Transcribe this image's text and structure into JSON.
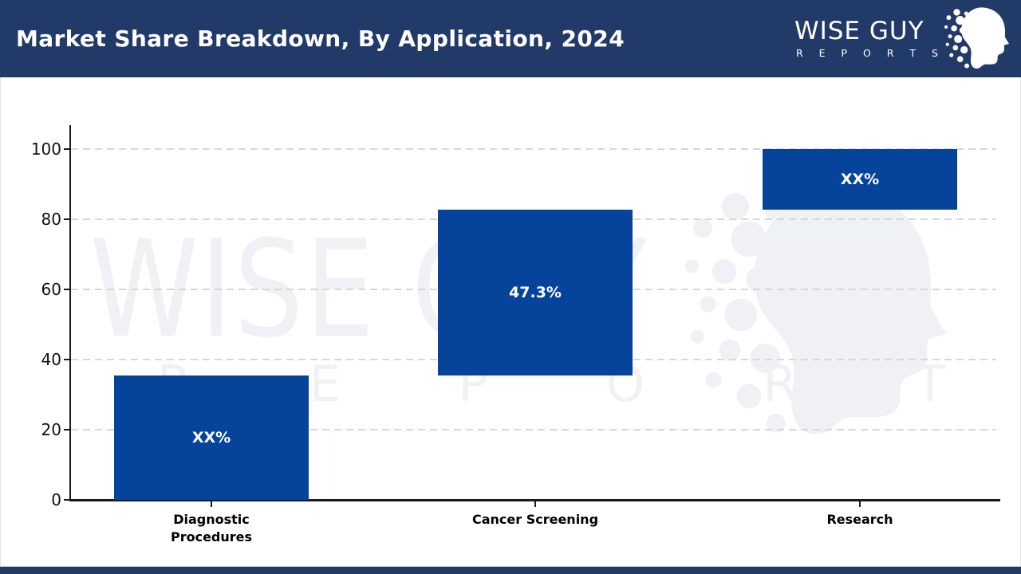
{
  "header": {
    "title": "Market Share Breakdown, By Application, 2024",
    "bg_color": "#223a68",
    "text_color": "#ffffff",
    "brand": {
      "line1": "WISE GUY",
      "line2": "R E P O R T S"
    }
  },
  "watermark": {
    "line1": "WISE GUY",
    "line2": "R E P O R T S",
    "color": "#f0f1f4"
  },
  "footer": {
    "bg_color": "#223a68"
  },
  "chart_data": {
    "type": "bar",
    "subtype": "waterfall",
    "title": "Market Share Breakdown, By Application, 2024",
    "categories": [
      "Diagnostic Procedures",
      "Cancer Screening",
      "Research"
    ],
    "category_display": [
      "Diagnostic\nProcedures",
      "Cancer Screening",
      "Research"
    ],
    "bars": [
      {
        "category": "Diagnostic Procedures",
        "start": 0,
        "end": 35.4,
        "label": "XX%"
      },
      {
        "category": "Cancer Screening",
        "start": 35.4,
        "end": 82.7,
        "label": "47.3%"
      },
      {
        "category": "Research",
        "start": 82.7,
        "end": 100,
        "label": "XX%"
      }
    ],
    "values": [
      35.4,
      47.3,
      17.3
    ],
    "value_labels": [
      "XX%",
      "47.3%",
      "XX%"
    ],
    "xlabel": "",
    "ylabel": "",
    "ylim": [
      0,
      100
    ],
    "yticks": [
      0,
      20,
      40,
      60,
      80,
      100
    ],
    "grid": "horizontal-dashed",
    "legend": "none",
    "bar_color": "#06449c",
    "bar_label_color": "#ffffff",
    "axis_color": "#1a1a1a"
  }
}
